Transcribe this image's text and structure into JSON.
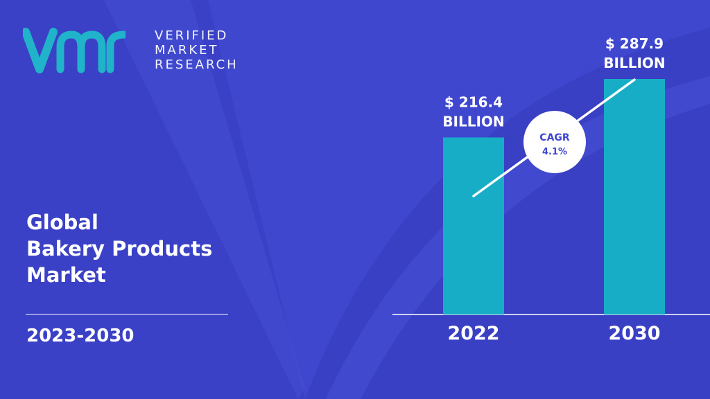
{
  "brand": {
    "line1": "VERIFIED",
    "line2": "MARKET",
    "line3": "RESEARCH"
  },
  "title": {
    "line1": "Global",
    "line2": "Bakery Products",
    "line3": "Market"
  },
  "period": "2023-2030",
  "colors": {
    "background": "#3f47cf",
    "bar": "#17adc7",
    "logo": "#20b3c9"
  },
  "chart_data": {
    "type": "bar",
    "categories": [
      "2022",
      "2030"
    ],
    "values": [
      216.4,
      287.9
    ],
    "value_labels": [
      [
        "$ 216.4",
        "BILLION"
      ],
      [
        "$ 287.9",
        "BILLION"
      ]
    ],
    "unit": "BILLION",
    "cagr": {
      "label": "CAGR",
      "value": "4.1%"
    }
  }
}
